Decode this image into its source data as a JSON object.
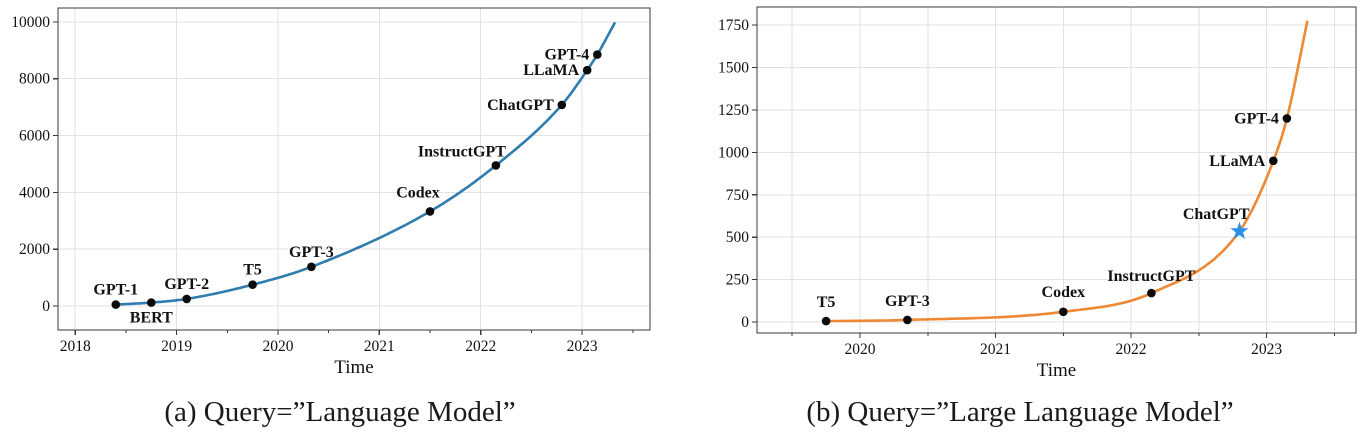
{
  "figure": {
    "captions": {
      "a": "(a) Query=”Language Model”",
      "b": "(b) Query=”Large Language Model”"
    }
  },
  "colors": {
    "line_a": "#2F7CAE",
    "line_b": "#EE8833",
    "marker": "#0B0B0B",
    "star": "#2B90EA",
    "grid": "#E2E2E2",
    "spine": "#3A3A3A",
    "text": "#111111"
  },
  "chart_data": [
    {
      "type": "line",
      "query": "Language Model",
      "title": "",
      "xlabel": "Time",
      "ylabel": "",
      "xlim": [
        2017.83,
        2023.67
      ],
      "ylim": [
        -845,
        10490
      ],
      "xticks": [
        2018,
        2019,
        2020,
        2021,
        2022,
        2023
      ],
      "xticks_minor": [
        2018.5,
        2019.5,
        2020.5,
        2021.5,
        2022.5,
        2023.5
      ],
      "x_gridlines": [
        2018,
        2019,
        2020,
        2021,
        2022,
        2023
      ],
      "yticks": [
        0,
        2000,
        4000,
        6000,
        8000,
        10000
      ],
      "grid": true,
      "legend": null,
      "line_color": "line_a",
      "points": [
        {
          "label": "GPT-1",
          "x": 2018.4,
          "y": 50,
          "marker": "dot",
          "label_pos": "above"
        },
        {
          "label": "BERT",
          "x": 2018.75,
          "y": 120,
          "marker": "dot",
          "label_pos": "below"
        },
        {
          "label": "GPT-2",
          "x": 2019.1,
          "y": 250,
          "marker": "dot",
          "label_pos": "above"
        },
        {
          "label": "T5",
          "x": 2019.75,
          "y": 750,
          "marker": "dot",
          "label_pos": "above"
        },
        {
          "label": "GPT-3",
          "x": 2020.33,
          "y": 1380,
          "marker": "dot",
          "label_pos": "above"
        },
        {
          "label": "Codex",
          "x": 2021.5,
          "y": 3330,
          "marker": "dot",
          "label_pos": "above",
          "dx": -12,
          "dy": -4
        },
        {
          "label": "InstructGPT",
          "x": 2022.15,
          "y": 4950,
          "marker": "dot",
          "label_pos": "above-left"
        },
        {
          "label": "ChatGPT",
          "x": 2022.8,
          "y": 7080,
          "marker": "dot",
          "label_pos": "left"
        },
        {
          "label": "LLaMA",
          "x": 2023.05,
          "y": 8300,
          "marker": "dot",
          "label_pos": "left"
        },
        {
          "label": "GPT-4",
          "x": 2023.15,
          "y": 8850,
          "marker": "dot",
          "label_pos": "left"
        }
      ],
      "curve_end": {
        "x": 2023.32,
        "y": 9950
      }
    },
    {
      "type": "line",
      "query": "Large Language Model",
      "title": "",
      "xlabel": "Time",
      "ylabel": "",
      "xlim": [
        2019.24,
        2023.66
      ],
      "ylim": [
        -65,
        1857
      ],
      "xticks": [
        2020,
        2021,
        2022,
        2023
      ],
      "xticks_minor": [
        2019.5,
        2020.5,
        2021.5,
        2022.5,
        2023.5
      ],
      "x_gridlines": [
        2019.5,
        2020,
        2020.5,
        2021,
        2021.5,
        2022,
        2022.5,
        2023,
        2023.5
      ],
      "yticks": [
        0,
        250,
        500,
        750,
        1000,
        1250,
        1500,
        1750
      ],
      "grid": true,
      "legend": null,
      "line_color": "line_b",
      "points": [
        {
          "label": "T5",
          "x": 2019.75,
          "y": 5,
          "marker": "dot",
          "label_pos": "above",
          "dy": -4
        },
        {
          "label": "GPT-3",
          "x": 2020.35,
          "y": 12,
          "marker": "dot",
          "label_pos": "above",
          "dy": -4
        },
        {
          "label": "Codex",
          "x": 2021.5,
          "y": 60,
          "marker": "dot",
          "label_pos": "above",
          "dy": -5
        },
        {
          "label": "InstructGPT",
          "x": 2022.15,
          "y": 170,
          "marker": "dot",
          "label_pos": "above",
          "dy": -2
        },
        {
          "label": "ChatGPT",
          "x": 2022.8,
          "y": 535,
          "marker": "star",
          "label_pos": "above-left",
          "dy": -3
        },
        {
          "label": "LLaMA",
          "x": 2023.05,
          "y": 950,
          "marker": "dot",
          "label_pos": "left"
        },
        {
          "label": "GPT-4",
          "x": 2023.15,
          "y": 1200,
          "marker": "dot",
          "label_pos": "left"
        }
      ],
      "curve_end": {
        "x": 2023.3,
        "y": 1770
      }
    }
  ]
}
